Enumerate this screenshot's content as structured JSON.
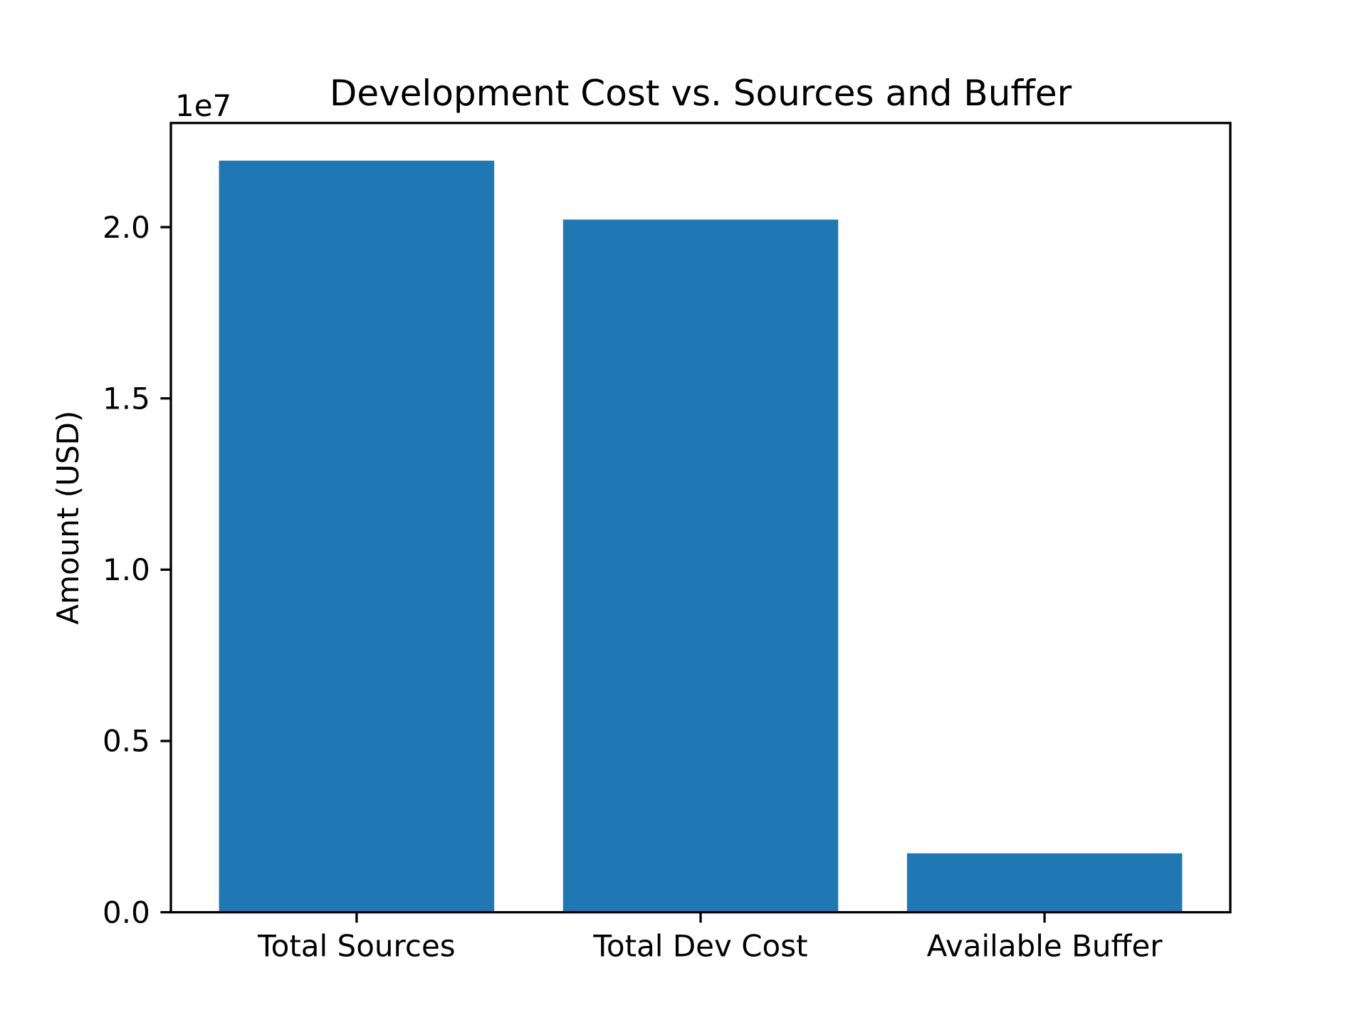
{
  "chart_data": {
    "type": "bar",
    "title": "Development Cost vs. Sources and Buffer",
    "xlabel": "",
    "ylabel": "Amount (USD)",
    "categories": [
      "Total Sources",
      "Total Dev Cost",
      "Available Buffer"
    ],
    "values": [
      21940000,
      20220000,
      1720000
    ],
    "bar_color": "#1f77b4",
    "ylim": [
      0,
      23040000
    ],
    "yticks": [
      0,
      5000000,
      10000000,
      15000000,
      20000000
    ],
    "ytick_labels": [
      "0.0",
      "0.5",
      "1.0",
      "1.5",
      "2.0"
    ],
    "offset_label": "1e7",
    "grid": false,
    "legend_position": "none",
    "text_color": "#000000",
    "spine_color": "#000000",
    "background_color": "#ffffff"
  }
}
